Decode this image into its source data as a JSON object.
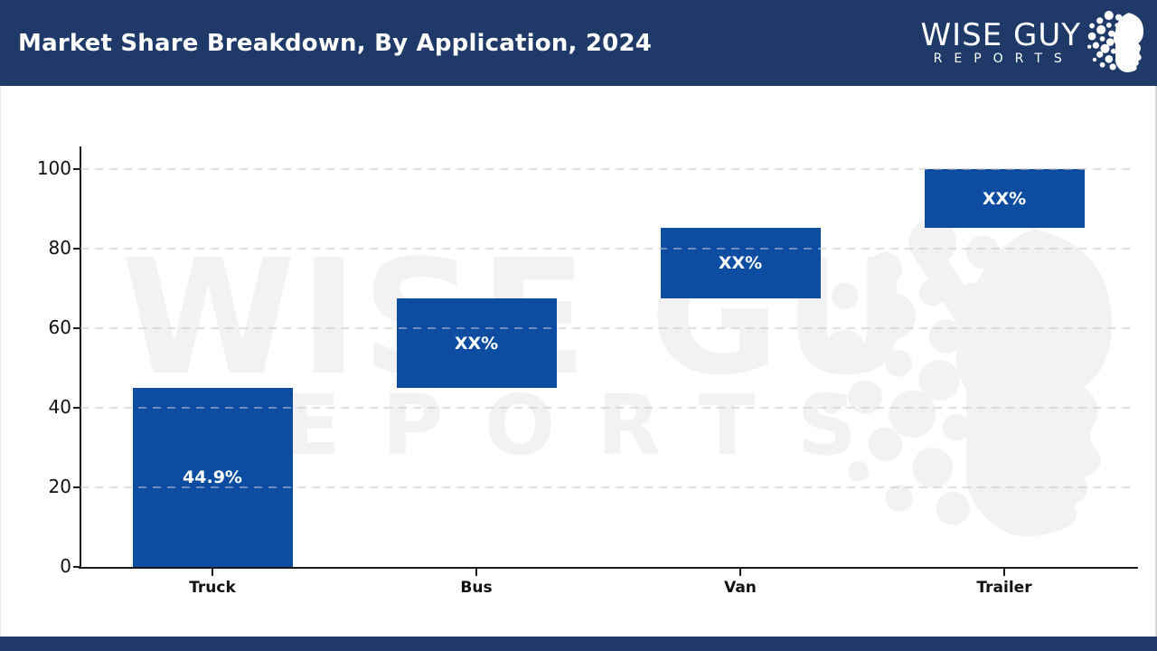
{
  "header": {
    "title": "Market Share Breakdown, By Application, 2024",
    "logo_line1": "WISE GUY",
    "logo_line2": "REPORTS"
  },
  "watermark": {
    "line1": "WISE GUY",
    "line2": "REPORTS"
  },
  "colors": {
    "header_bg": "#1f3a68",
    "footer_bg": "#1f3a68",
    "bar": "#0c4da2",
    "bar_label": "#ffffff",
    "axis": "#1a1a1a",
    "watermark": "#f2f2f4"
  },
  "chart_data": {
    "type": "bar",
    "subtype": "waterfall",
    "title": "Market Share Breakdown, By Application, 2024",
    "categories": [
      "Truck",
      "Bus",
      "Van",
      "Trailer"
    ],
    "segments": [
      {
        "category": "Truck",
        "start": 0,
        "end": 44.9,
        "value_label": "44.9%"
      },
      {
        "category": "Bus",
        "start": 44.9,
        "end": 67.5,
        "value_label": "XX%"
      },
      {
        "category": "Van",
        "start": 67.5,
        "end": 85.2,
        "value_label": "XX%"
      },
      {
        "category": "Trailer",
        "start": 85.2,
        "end": 100,
        "value_label": "XX%"
      }
    ],
    "xlabel": "",
    "ylabel": "",
    "ylim": [
      0,
      100
    ],
    "yticks": [
      0,
      20,
      40,
      60,
      80,
      100
    ],
    "grid": "horizontal-dashed",
    "legend": "none"
  }
}
